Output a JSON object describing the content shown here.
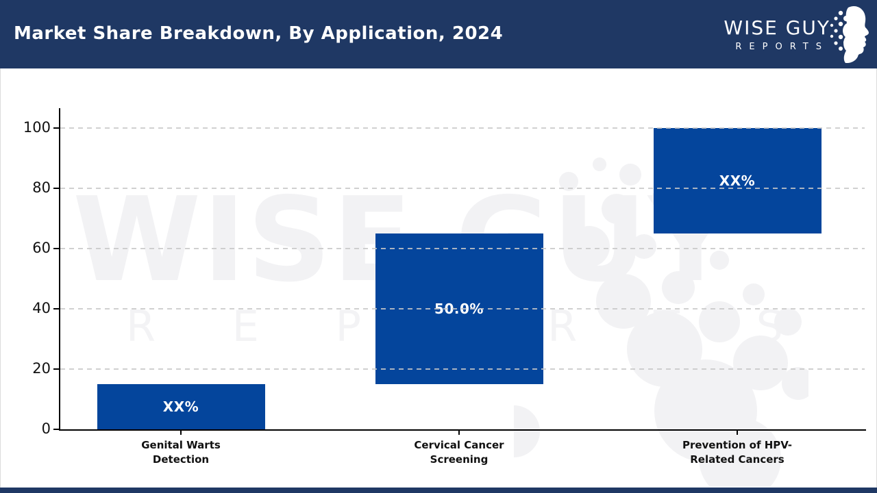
{
  "header": {
    "title": "Market Share Breakdown, By Application, 2024",
    "logo": {
      "wordmark": "WISE GUY",
      "subtitle": "REPORTS"
    }
  },
  "watermark": {
    "wordmark": "WISE GUY",
    "subtitle": "R E P O R T S"
  },
  "colors": {
    "header_bg": "#1f3864",
    "bar": "#04459c",
    "grid": "#c8c8c8",
    "axis": "#000000",
    "bar_label": "#ffffff",
    "tick_label": "#111111"
  },
  "chart_data": {
    "type": "bar",
    "subtype": "floating-waterfall",
    "title": "Market Share Breakdown, By Application, 2024",
    "categories": [
      "Genital Warts\nDetection",
      "Cervical Cancer\nScreening",
      "Prevention of HPV-\nRelated Cancers"
    ],
    "series": [
      {
        "name": "Market Share (%)",
        "segments": [
          [
            0,
            15
          ],
          [
            15,
            65
          ],
          [
            65,
            100
          ]
        ],
        "values": [
          15,
          50,
          35
        ]
      }
    ],
    "bar_labels": [
      "XX%",
      "50.0%",
      "XX%"
    ],
    "ylim": [
      0,
      100
    ],
    "yticks": [
      0,
      20,
      40,
      60,
      80,
      100
    ],
    "xlabel": "",
    "ylabel": "",
    "grid": "horizontal-dashed",
    "legend": "none"
  }
}
